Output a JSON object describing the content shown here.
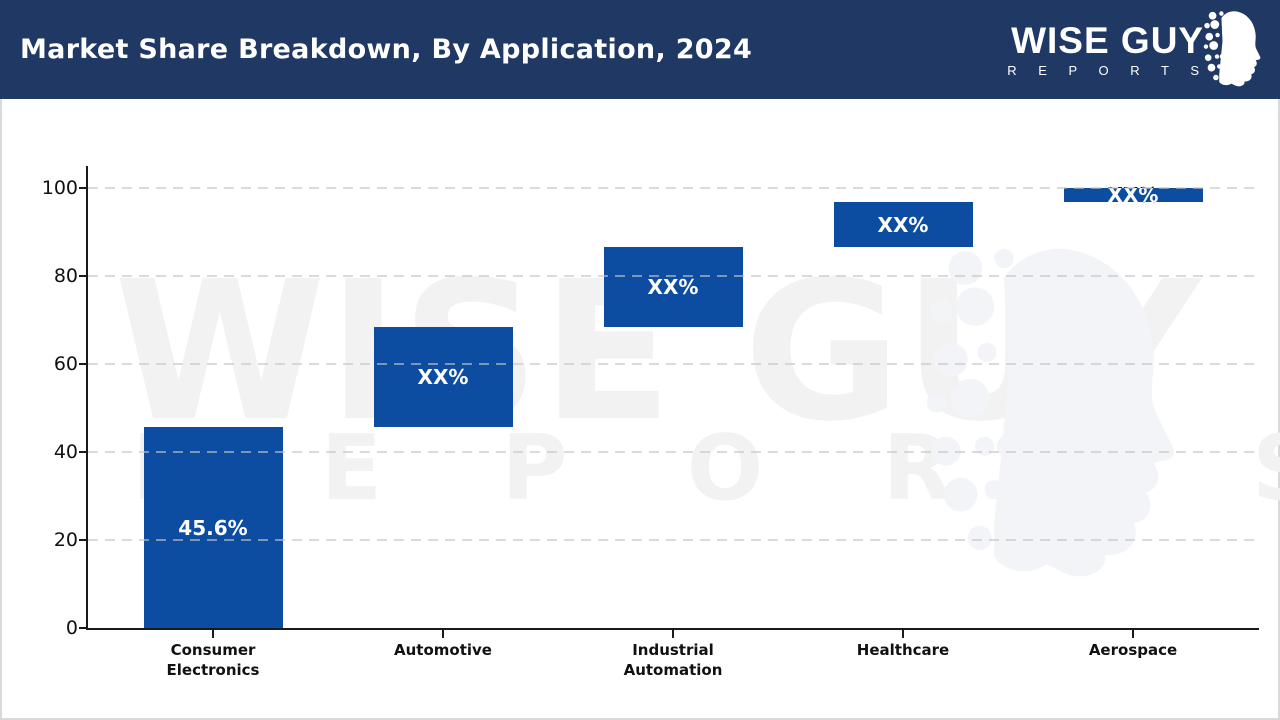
{
  "header": {
    "title": "Market Share Breakdown, By Application, 2024",
    "brand": {
      "line1": "WISE GUY",
      "line2": "R E P O R T S",
      "icon": "dotted-head-profile-icon"
    },
    "bg_color": "#203864",
    "text_color": "#ffffff"
  },
  "watermark": {
    "line1": "WISE GUY",
    "line2": "R E P O R T S"
  },
  "chart_data": {
    "type": "bar",
    "subtype": "waterfall",
    "title": "Market Share Breakdown, By Application, 2024",
    "categories": [
      "Consumer Electronics",
      "Automotive",
      "Industrial Automation",
      "Healthcare",
      "Aerospace"
    ],
    "segments": [
      {
        "category": "Consumer Electronics",
        "start": 0,
        "end": 45.6,
        "label": "45.6%"
      },
      {
        "category": "Automotive",
        "start": 45.6,
        "end": 68.4,
        "label": "XX%"
      },
      {
        "category": "Industrial Automation",
        "start": 68.4,
        "end": 86.6,
        "label": "XX%"
      },
      {
        "category": "Healthcare",
        "start": 86.6,
        "end": 96.8,
        "label": "XX%"
      },
      {
        "category": "Aerospace",
        "start": 96.8,
        "end": 100,
        "label": "XX%"
      }
    ],
    "xlabel": "",
    "ylabel": "",
    "ylim": [
      0,
      100
    ],
    "yticks": [
      0,
      20,
      40,
      60,
      80,
      100
    ],
    "grid": "horizontal dashed, drawn over bars",
    "legend": "none",
    "bar_color": "#0c4da2",
    "bar_label_color": "#ffffff",
    "axis_color": "#1a1a1a"
  }
}
